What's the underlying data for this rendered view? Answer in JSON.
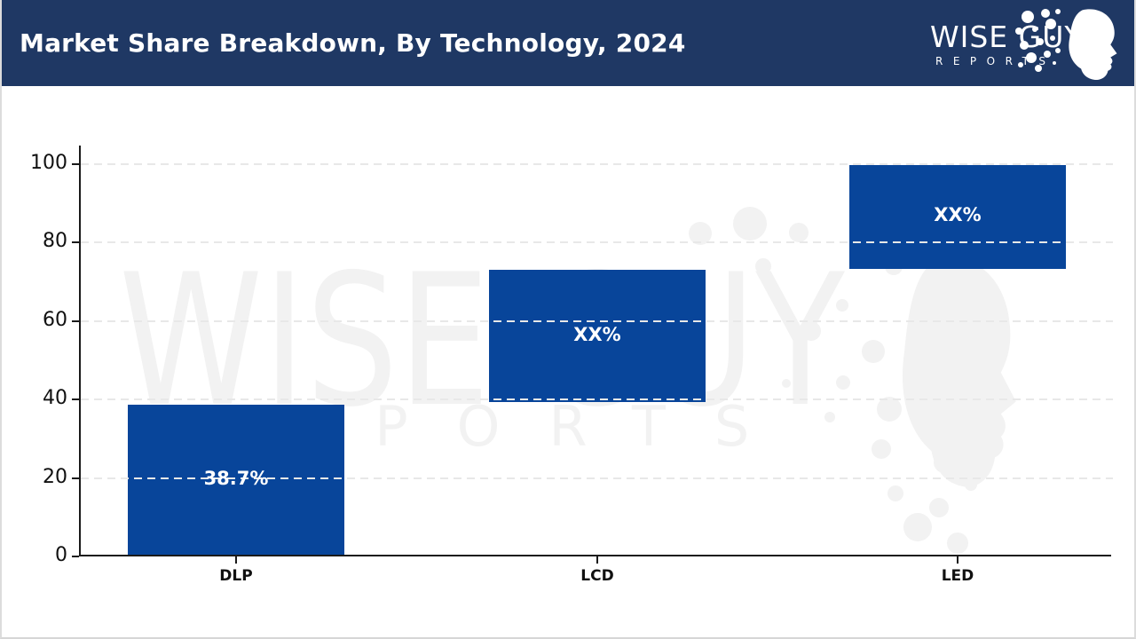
{
  "header": {
    "title": "Market Share Breakdown, By Technology, 2024",
    "logo": {
      "name": "WISE GUY",
      "tagline": "REPORTS"
    }
  },
  "watermark": {
    "line1": "WISE GUY",
    "line2": "REPORTS"
  },
  "chart_data": {
    "type": "bar",
    "variant": "waterfall",
    "title": "Market Share Breakdown, By Technology, 2024",
    "categories": [
      "DLP",
      "LCD",
      "LED"
    ],
    "segments": [
      {
        "category": "DLP",
        "start": 0,
        "end": 38.7,
        "label": "38.7%"
      },
      {
        "category": "LCD",
        "start": 39.3,
        "end": 73.0,
        "label": "XX%"
      },
      {
        "category": "LED",
        "start": 73.3,
        "end": 99.8,
        "label": "XX%"
      }
    ],
    "yticks": [
      0,
      20,
      40,
      60,
      80,
      100
    ],
    "ylim": [
      0,
      104.5
    ],
    "xlabel": "",
    "ylabel": "",
    "grid": "horizontal-dashed-over-bars",
    "legend": "none",
    "colors": {
      "bar": "#08459a",
      "bar_label": "#ffffff",
      "grid": "#e8e8e8",
      "axis": "#1a1a1a",
      "header_bg": "#1f3864",
      "watermark": "#f2f2f2"
    }
  }
}
